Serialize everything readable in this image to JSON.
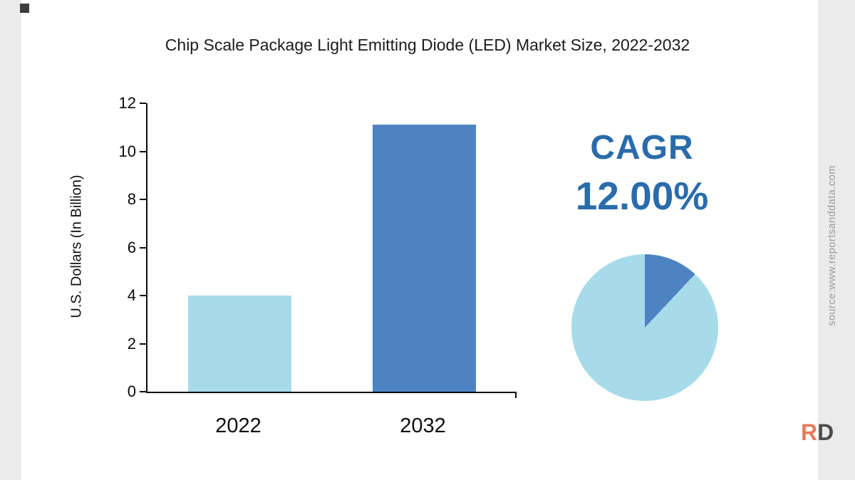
{
  "chart_data": [
    {
      "type": "bar",
      "title": "Chip Scale Package Light Emitting Diode (LED) Market Size, 2022-2032",
      "categories": [
        "2022",
        "2032"
      ],
      "values": [
        4,
        11.1
      ],
      "bar_colors": [
        "#a7dbea",
        "#4d83c3"
      ],
      "ylabel": "U.S. Dollars (In Billion)",
      "xlabel": "",
      "ylim": [
        0,
        12
      ],
      "yticks": [
        0,
        2,
        4,
        6,
        8,
        10,
        12
      ],
      "grid": false,
      "legend": "none"
    },
    {
      "type": "pie",
      "title": "CAGR",
      "value_label": "12.00%",
      "values": [
        12,
        88
      ],
      "colors": [
        "#4d83c3",
        "#a7dbea"
      ],
      "start_angle_deg": 0,
      "accent_color": "#2a6cab"
    }
  ],
  "source": {
    "text": "source:www.reportsanddata.com"
  },
  "logo": {
    "r": "R",
    "d": "D"
  }
}
